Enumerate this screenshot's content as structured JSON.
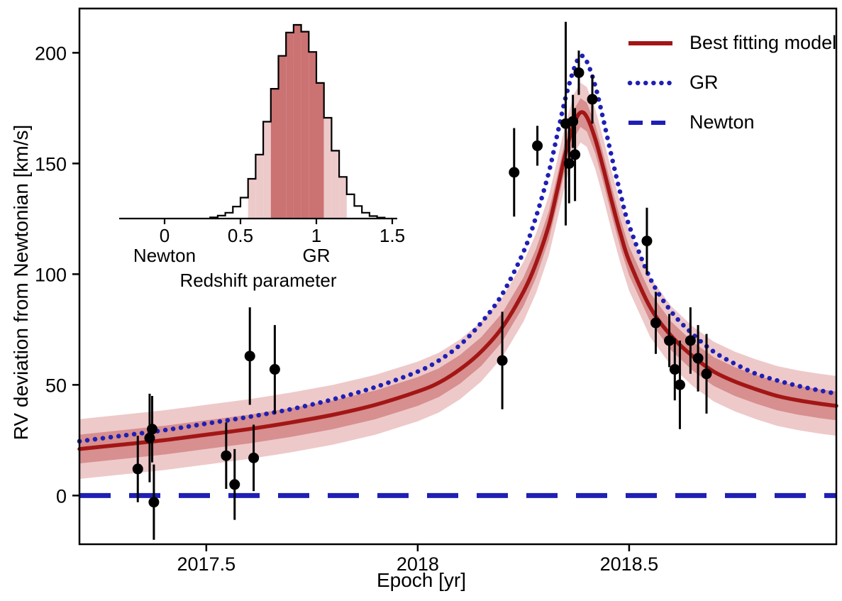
{
  "figure": {
    "background": "#ffffff",
    "frame_color": "#000000"
  },
  "chart_data": {
    "type": "line",
    "title": "",
    "xlabel": "Epoch [yr]",
    "ylabel": "RV deviation from Newtonian [km/s]",
    "xlim": [
      2017.2,
      2018.99
    ],
    "ylim": [
      -22,
      220
    ],
    "grid": false,
    "xticks": [
      2017.5,
      2018,
      2018.5
    ],
    "xtick_labels": [
      "2017.5",
      "2018",
      "2018.5"
    ],
    "yticks": [
      0,
      50,
      100,
      150,
      200
    ],
    "ytick_labels": [
      "0",
      "50",
      "100",
      "150",
      "200"
    ],
    "legend": {
      "position": "top-right",
      "entries": [
        {
          "label": "Best fitting model",
          "style": "solid",
          "color": "#a31616"
        },
        {
          "label": "GR",
          "style": "dotted",
          "color": "#1f1fb4"
        },
        {
          "label": "Newton",
          "style": "dashed",
          "color": "#1f1fb4"
        }
      ]
    },
    "series": [
      {
        "name": "best_fit",
        "style": "solid",
        "color": "#a31616",
        "width": 5.5,
        "band_inner": 6.5,
        "band_outer": 13.5,
        "band_inner_color": "#d78f8f",
        "band_outer_color": "#eec9c9",
        "x": [
          2017.2,
          2017.3,
          2017.4,
          2017.5,
          2017.6,
          2017.7,
          2017.8,
          2017.9,
          2018.0,
          2018.05,
          2018.1,
          2018.15,
          2018.2,
          2018.25,
          2018.28,
          2018.31,
          2018.33,
          2018.35,
          2018.37,
          2018.385,
          2018.4,
          2018.42,
          2018.44,
          2018.46,
          2018.48,
          2018.5,
          2018.55,
          2018.6,
          2018.65,
          2018.7,
          2018.75,
          2018.8,
          2018.85,
          2018.9,
          2018.95,
          2018.99
        ],
        "y": [
          21,
          23,
          25,
          27.5,
          30,
          33,
          36.5,
          41,
          47,
          51,
          57,
          65,
          76,
          92,
          105,
          122,
          138,
          155,
          168,
          173,
          171,
          161,
          147,
          132,
          118,
          106,
          85,
          72,
          63,
          56,
          51.5,
          48,
          45,
          43,
          41.5,
          40.5
        ]
      },
      {
        "name": "gr",
        "style": "dotted",
        "color": "#1f1fb4",
        "width": 6.5,
        "x": [
          2017.2,
          2017.3,
          2017.4,
          2017.5,
          2017.6,
          2017.7,
          2017.8,
          2017.9,
          2018.0,
          2018.05,
          2018.1,
          2018.15,
          2018.2,
          2018.25,
          2018.28,
          2018.31,
          2018.33,
          2018.35,
          2018.37,
          2018.385,
          2018.4,
          2018.42,
          2018.44,
          2018.46,
          2018.48,
          2018.5,
          2018.55,
          2018.6,
          2018.65,
          2018.7,
          2018.75,
          2018.8,
          2018.85,
          2018.9,
          2018.95,
          2018.99
        ],
        "y": [
          24.5,
          27,
          29.5,
          32.5,
          35.5,
          39,
          43.5,
          49,
          56,
          61,
          68,
          78,
          91,
          110,
          126,
          146,
          163,
          180,
          193,
          198.5,
          196,
          185,
          169,
          152,
          136,
          122,
          98,
          83,
          73,
          65,
          59.5,
          55,
          52,
          49.5,
          47.5,
          46
        ]
      },
      {
        "name": "newton",
        "style": "dashed",
        "color": "#1f1fb4",
        "width": 7,
        "x": [
          2017.2,
          2018.99
        ],
        "y": [
          0,
          0
        ]
      }
    ],
    "points": {
      "color": "#000000",
      "radius": 7.5,
      "error_bar_width": 3,
      "data": [
        [
          2017.338,
          12,
          15
        ],
        [
          2017.366,
          26,
          20
        ],
        [
          2017.372,
          30,
          15
        ],
        [
          2017.376,
          -3,
          17
        ],
        [
          2017.547,
          18,
          15
        ],
        [
          2017.567,
          5,
          16
        ],
        [
          2017.603,
          63,
          22
        ],
        [
          2017.612,
          17,
          15
        ],
        [
          2017.662,
          57,
          20
        ],
        [
          2018.2,
          61,
          22
        ],
        [
          2018.228,
          146,
          20
        ],
        [
          2018.283,
          158,
          9
        ],
        [
          2018.35,
          168,
          46
        ],
        [
          2018.358,
          150,
          18
        ],
        [
          2018.367,
          169,
          12
        ],
        [
          2018.372,
          154,
          21
        ],
        [
          2018.381,
          191,
          10
        ],
        [
          2018.413,
          179,
          11
        ],
        [
          2018.542,
          115,
          15
        ],
        [
          2018.563,
          78,
          14
        ],
        [
          2018.595,
          70,
          12
        ],
        [
          2018.608,
          57,
          14
        ],
        [
          2018.62,
          50,
          20
        ],
        [
          2018.645,
          70,
          15
        ],
        [
          2018.663,
          62,
          15
        ],
        [
          2018.683,
          55,
          18
        ]
      ]
    },
    "inset": {
      "type": "histogram",
      "xlabel": "Redshift parameter",
      "xticks": [
        0,
        0.5,
        1,
        1.5
      ],
      "xtick_labels": [
        "0",
        "0.5",
        "1",
        "1.5"
      ],
      "annotations": [
        {
          "label": "Newton",
          "x": 0
        },
        {
          "label": "GR",
          "x": 1
        }
      ],
      "bin_start": 0.3,
      "bin_width": 0.05,
      "heights": [
        0.006,
        0.015,
        0.03,
        0.062,
        0.108,
        0.205,
        0.33,
        0.5,
        0.67,
        0.84,
        0.96,
        1.0,
        0.965,
        0.86,
        0.7,
        0.52,
        0.35,
        0.215,
        0.125,
        0.065,
        0.03,
        0.013,
        0.005
      ],
      "shade_1sigma": [
        0.71,
        1.05
      ],
      "shade_2sigma": [
        0.54,
        1.22
      ],
      "color_1sigma": "#cb7272",
      "color_2sigma": "#edcaca",
      "outline_color": "#000000"
    }
  }
}
